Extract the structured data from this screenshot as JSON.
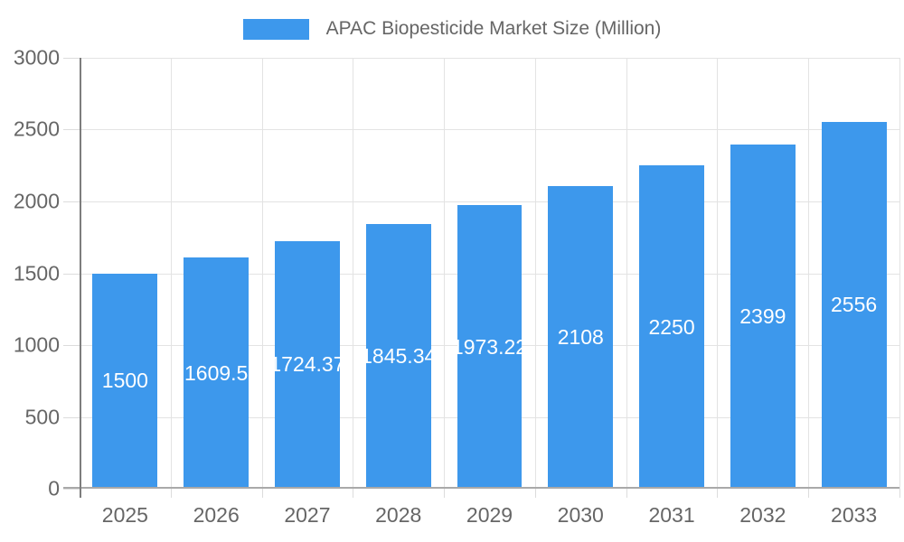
{
  "legend": {
    "label": "APAC Biopesticide Market Size (Million)",
    "swatch_color": "#3d98ec"
  },
  "chart_data": {
    "type": "bar",
    "title": "APAC Biopesticide Market Size (Million)",
    "categories": [
      "2025",
      "2026",
      "2027",
      "2028",
      "2029",
      "2030",
      "2031",
      "2032",
      "2033"
    ],
    "values": [
      1500,
      1609.5,
      1724.37,
      1845.34,
      1973.22,
      2108,
      2250,
      2399,
      2556
    ],
    "value_labels": [
      "1500",
      "1609.5",
      "1724.37",
      "1845.34",
      "1973.22",
      "2108",
      "2250",
      "2399",
      "2556"
    ],
    "xlabel": "",
    "ylabel": "",
    "ylim": [
      0,
      3000
    ],
    "yticks": [
      0,
      500,
      1000,
      1500,
      2000,
      2500,
      3000
    ],
    "ytick_labels": [
      "0",
      "500",
      "1000",
      "1500",
      "2000",
      "2500",
      "3000"
    ],
    "grid": true,
    "legend_position": "top",
    "bar_color": "#3d98ec",
    "value_label_color": "#ffffff",
    "axis_text_color": "#666666"
  }
}
